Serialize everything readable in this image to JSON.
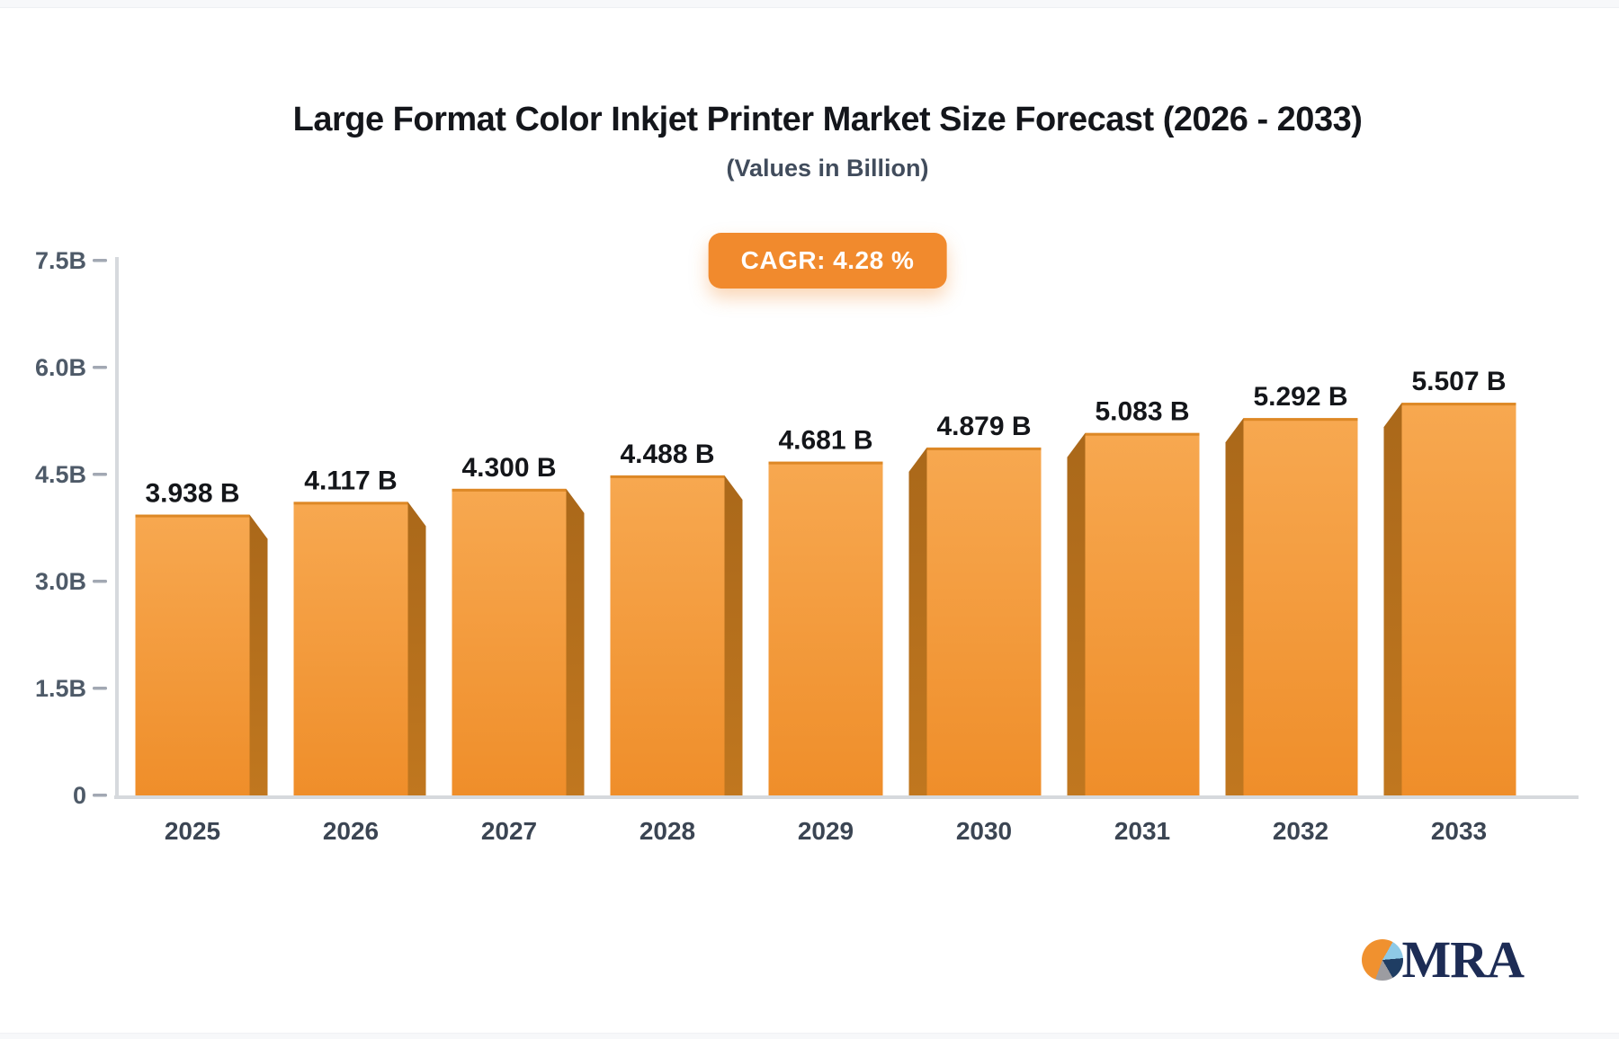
{
  "logo": {
    "text": "MRA"
  },
  "colors": {
    "accent_orange": "#F18A2D",
    "bar_face_top": "#F7A850",
    "bar_face_bottom": "#EF8E2A",
    "bar_side": "#B46F1E",
    "bar_top_edge": "#DD8826",
    "axis_line": "#D6D9DD",
    "tick_dash": "#A2A8B3",
    "tick_label": "#4E5A68",
    "year_label": "#3B4553",
    "value_label": "#14161A",
    "logo_navy": "#1D2C55"
  },
  "chart_data": {
    "type": "bar",
    "title": "Large Format Color Inkjet Printer Market Size Forecast (2026 - 2033)",
    "subtitle": "(Values in Billion)",
    "cagr": "CAGR: 4.28 %",
    "categories": [
      "2025",
      "2026",
      "2027",
      "2028",
      "2029",
      "2030",
      "2031",
      "2032",
      "2033"
    ],
    "values": [
      3.938,
      4.117,
      4.3,
      4.488,
      4.681,
      4.879,
      5.083,
      5.292,
      5.507
    ],
    "value_labels": [
      "3.938 B",
      "4.117 B",
      "4.300 B",
      "4.488 B",
      "4.681 B",
      "4.879 B",
      "5.083 B",
      "5.292 B",
      "5.507 B"
    ],
    "xlabel": "",
    "ylabel": "",
    "ylim": [
      0,
      7.5
    ],
    "yticks": [
      {
        "value": 0,
        "label": "0"
      },
      {
        "value": 1.5,
        "label": "1.5B"
      },
      {
        "value": 3.0,
        "label": "3.0B"
      },
      {
        "value": 4.5,
        "label": "4.5B"
      },
      {
        "value": 6.0,
        "label": "6.0B"
      },
      {
        "value": 7.5,
        "label": "7.5B"
      }
    ],
    "grid": false,
    "legend": false,
    "bar_style": "3d-perspective-toward-center"
  }
}
